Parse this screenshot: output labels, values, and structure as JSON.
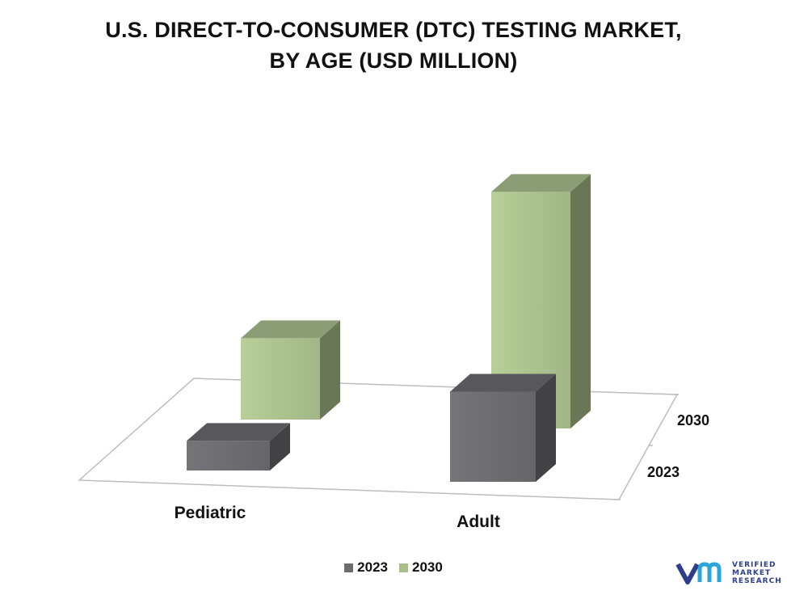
{
  "title_line1": "U.S. DIRECT-TO-CONSUMER (DTC) TESTING MARKET,",
  "title_line2": "BY AGE (USD MILLION)",
  "chart_data": {
    "type": "bar",
    "style": "3d",
    "categories": [
      "Pediatric",
      "Adult"
    ],
    "depth_labels": [
      "2023",
      "2030"
    ],
    "series": [
      {
        "name": "2023",
        "values": [
          40,
          122
        ],
        "color": "#6b6b70"
      },
      {
        "name": "2030",
        "values": [
          110,
          320
        ],
        "color": "#a9c08d"
      }
    ],
    "ylim": [
      0,
      350
    ],
    "grid": false,
    "legend_position": "bottom"
  },
  "legend": [
    {
      "label": "2023",
      "color": "#6b6b70"
    },
    {
      "label": "2030",
      "color": "#a9c08d"
    }
  ],
  "brand": {
    "line1": "VERIFIED",
    "line2": "MARKET",
    "line3": "RESEARCH",
    "color": "#2d3e8a"
  }
}
